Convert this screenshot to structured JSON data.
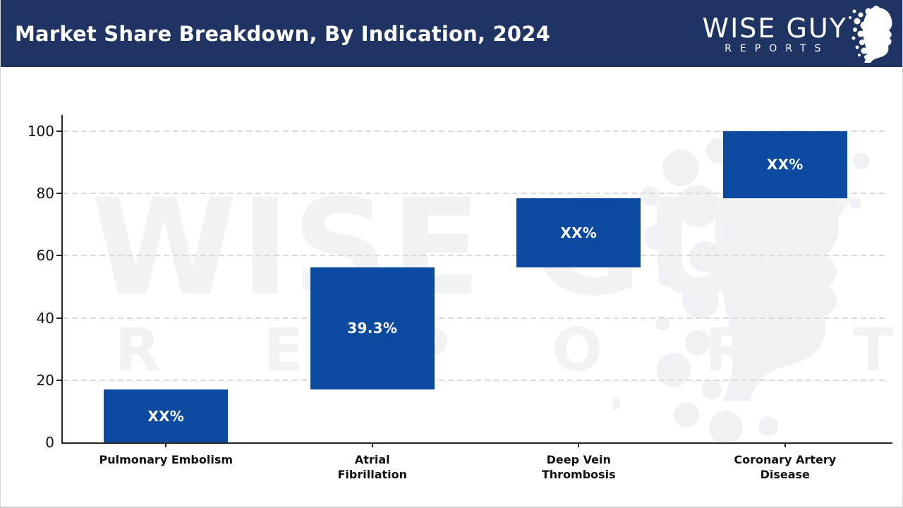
{
  "header": {
    "title": "Market Share Breakdown, By Indication, 2024",
    "bg_color": "#1f3463",
    "logo": {
      "line1": "WISE GUY",
      "line2": "REPORTS"
    }
  },
  "watermark": {
    "line1": "WISE GUY",
    "line2": "R E P O R T S"
  },
  "chart_data": {
    "type": "bar",
    "subtype": "waterfall",
    "title": "Market Share Breakdown, By Indication, 2024",
    "categories": [
      "Pulmonary Embolism",
      "Atrial\nFibrillation",
      "Deep Vein\nThrombosis",
      "Coronary Artery\nDisease"
    ],
    "segments": [
      {
        "category": "Pulmonary Embolism",
        "start": 0,
        "end": 17,
        "label": "XX%"
      },
      {
        "category": "Atrial Fibrillation",
        "start": 17,
        "end": 56.3,
        "label": "39.3%"
      },
      {
        "category": "Deep Vein Thrombosis",
        "start": 56.3,
        "end": 78.5,
        "label": "XX%"
      },
      {
        "category": "Coronary Artery Disease",
        "start": 78.5,
        "end": 100,
        "label": "XX%"
      }
    ],
    "ylim": [
      0,
      100
    ],
    "yticks": [
      0,
      20,
      40,
      60,
      80,
      100
    ],
    "xlabel": "",
    "ylabel": "",
    "grid": "horizontal-dashed",
    "legend": "none",
    "bar_color": "#0b4a9f",
    "bar_label_color": "#ffffff",
    "grid_color": "#dadada",
    "axis_color": "#262626",
    "watermark_color": "#f1f2f4"
  }
}
